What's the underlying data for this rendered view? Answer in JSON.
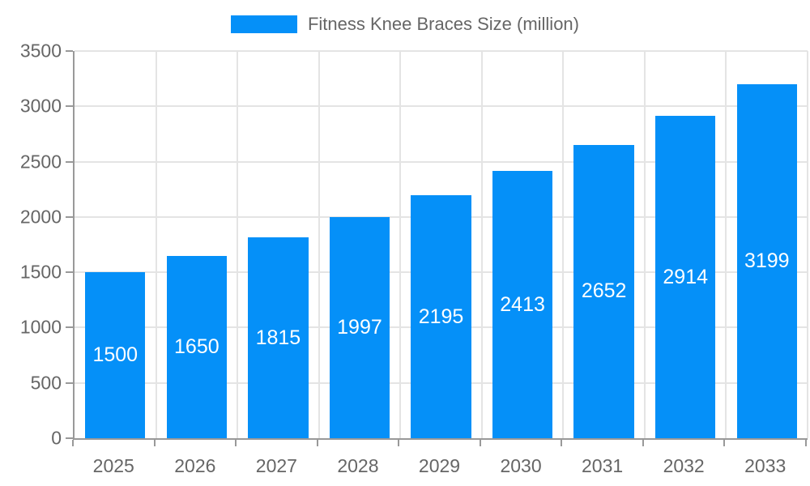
{
  "legend": {
    "swatch_color": "#0590f8",
    "label": "Fitness Knee Braces Size (million)"
  },
  "colors": {
    "bar": "#0590f8",
    "grid": "#e4e4e4",
    "axis": "#999999",
    "text": "#666666",
    "value_label": "#ffffff"
  },
  "chart_data": {
    "type": "bar",
    "title": "Fitness Knee Braces Size (million)",
    "categories": [
      "2025",
      "2026",
      "2027",
      "2028",
      "2029",
      "2030",
      "2031",
      "2032",
      "2033"
    ],
    "values": [
      1500,
      1650,
      1815,
      1997,
      2195,
      2413,
      2652,
      2914,
      3199
    ],
    "series": [
      {
        "name": "Fitness Knee Braces Size (million)",
        "values": [
          1500,
          1650,
          1815,
          1997,
          2195,
          2413,
          2652,
          2914,
          3199
        ]
      }
    ],
    "xlabel": "",
    "ylabel": "",
    "ylim": [
      0,
      3500
    ],
    "yticks": [
      0,
      500,
      1000,
      1500,
      2000,
      2500,
      3000,
      3500
    ],
    "grid": true,
    "legend_position": "top",
    "value_labels": "centered-inside-bars"
  }
}
